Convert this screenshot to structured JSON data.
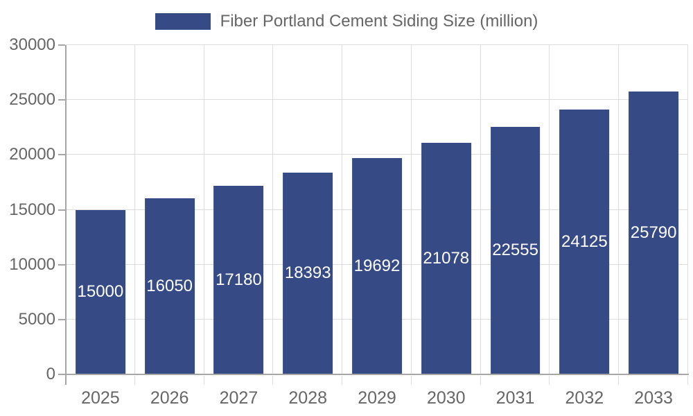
{
  "legend": {
    "label": "Fiber Portland Cement Siding Size (million)"
  },
  "chart_data": {
    "type": "bar",
    "title": "",
    "categories": [
      "2025",
      "2026",
      "2027",
      "2028",
      "2029",
      "2030",
      "2031",
      "2032",
      "2033"
    ],
    "series": [
      {
        "name": "Fiber Portland Cement Siding Size (million)",
        "values": [
          15000,
          16050,
          17180,
          18393,
          19692,
          21078,
          22555,
          24125,
          25790
        ]
      }
    ],
    "xlabel": "",
    "ylabel": "",
    "ylim": [
      0,
      30000
    ],
    "yticks": [
      0,
      5000,
      10000,
      15000,
      20000,
      25000,
      30000
    ],
    "grid": true,
    "legend_position": "top",
    "value_labels": "inside-center"
  },
  "colors": {
    "bar": "#364A86",
    "grid": "#DDDDE1",
    "axis": "#A6A6A6",
    "tick_label": "#666666",
    "legend_text": "#666666",
    "bar_label": "#FFFFFF"
  }
}
